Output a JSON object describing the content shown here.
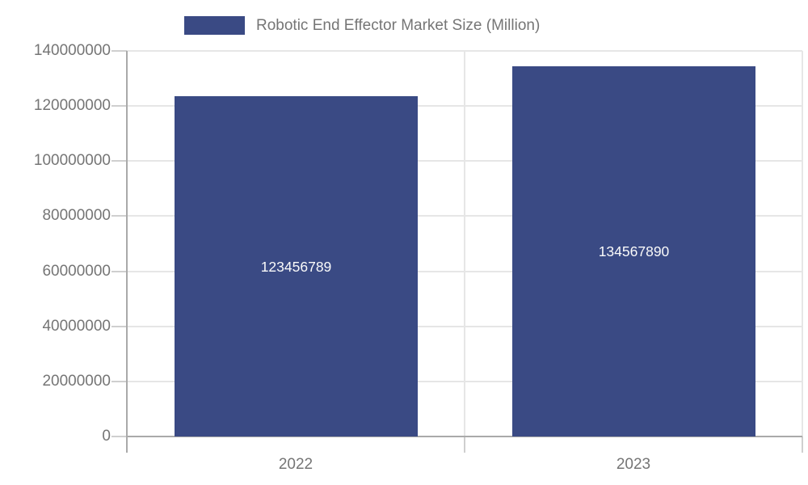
{
  "chart_data": {
    "type": "bar",
    "title": "Robotic End Effector Market Size (Million)",
    "categories": [
      "2022",
      "2023"
    ],
    "series": [
      {
        "name": "Robotic End Effector Market Size (Million)",
        "values": [
          123456789,
          134567890
        ]
      }
    ],
    "bar_labels": [
      "123456789",
      "134567890"
    ],
    "xlabel": "",
    "ylabel": "",
    "ylim": [
      0,
      140000000
    ],
    "ytick_step": 20000000,
    "yticks": [
      0,
      20000000,
      40000000,
      60000000,
      80000000,
      100000000,
      120000000,
      140000000
    ],
    "grid": true,
    "legend_position": "top-center"
  },
  "colors": {
    "bar": "#3A4A84",
    "bar_label_text": "#fafafa",
    "legend_text": "#757575",
    "tick_text": "#757575",
    "grid_line": "#e6e6e6",
    "axis_line": "#aaaaaa",
    "tick_line": "#cfcfcf",
    "background": "#ffffff"
  }
}
